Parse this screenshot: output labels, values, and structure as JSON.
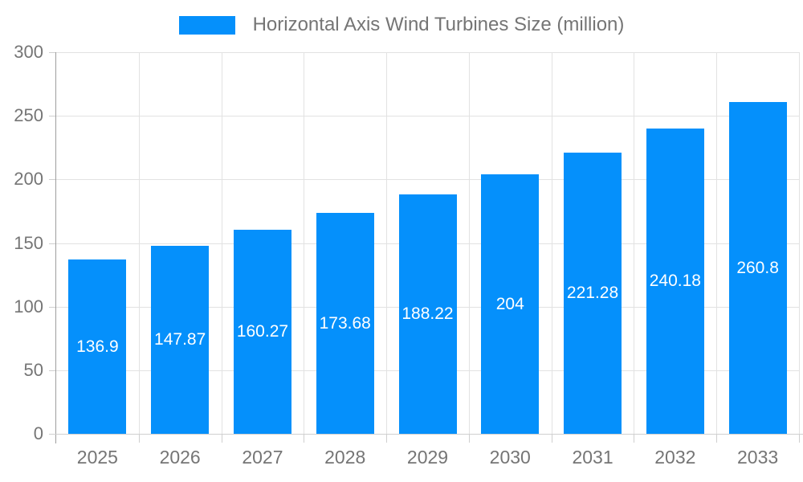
{
  "legend": {
    "series_label": "Horizontal Axis Wind Turbines Size (million)"
  },
  "chart_data": {
    "type": "bar",
    "title": "Horizontal Axis Wind Turbines Size (million)",
    "categories": [
      "2025",
      "2026",
      "2027",
      "2028",
      "2029",
      "2030",
      "2031",
      "2032",
      "2033"
    ],
    "values": [
      136.9,
      147.87,
      160.27,
      173.68,
      188.22,
      204,
      221.28,
      240.18,
      260.8
    ],
    "xlabel": "",
    "ylabel": "",
    "ylim": [
      0,
      300
    ],
    "yticks": [
      0,
      50,
      100,
      150,
      200,
      250,
      300
    ],
    "grid": true,
    "legend_position": "top",
    "bar_color": "#0590fb",
    "value_label_color": "#ffffff",
    "axis_text_color": "#757575",
    "gridline_color": "#e2e2e2"
  }
}
